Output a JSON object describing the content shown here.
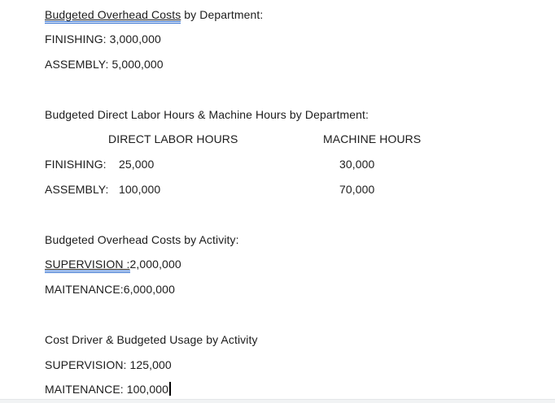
{
  "colors": {
    "text": "#1c1c1c",
    "grammar_underline": "#2b6bce",
    "page_background": "#ffffff",
    "bottom_strip": "#f1f3f4"
  },
  "document": {
    "overhead_by_department": {
      "heading_underlined": "Budgeted Overhead Costs",
      "heading_rest": " by Department:",
      "finishing_line": "FINISHING: 3,000,000",
      "assembly_line": "ASSEMBLY: 5,000,000"
    },
    "hours_by_department": {
      "heading": "Budgeted Direct Labor Hours & Machine Hours by Department:",
      "col_direct_labor": "DIRECT LABOR HOURS",
      "col_machine": "MACHINE HOURS",
      "rows": [
        {
          "label": "FINISHING:",
          "direct_labor_hours": "25,000",
          "machine_hours": "30,000"
        },
        {
          "label": "ASSEMBLY:",
          "direct_labor_hours": "100,000",
          "machine_hours": "70,000"
        }
      ]
    },
    "overhead_by_activity": {
      "heading": "Budgeted Overhead Costs by Activity:",
      "supervision_underlined": "SUPERVISION :",
      "supervision_value": "2,000,000",
      "maintenance_line": "MAITENANCE:6,000,000"
    },
    "cost_driver_usage": {
      "heading": "Cost Driver & Budgeted Usage by Activity",
      "supervision_line": "SUPERVISION: 125,000",
      "maintenance_line": "MAITENANCE: 100,000"
    }
  }
}
